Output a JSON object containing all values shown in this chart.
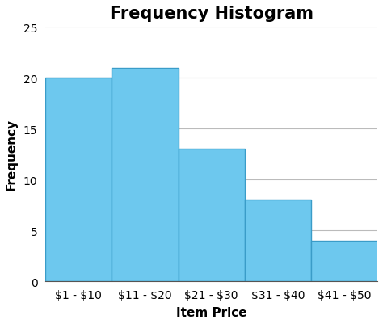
{
  "title": "Frequency Histogram",
  "xlabel": "Item Price",
  "ylabel": "Frequency",
  "categories": [
    "\\$1 - \\$10",
    "\\$11 - \\$20",
    "\\$21 - \\$30",
    "\\$31 - \\$40",
    "\\$41 - \\$50"
  ],
  "values": [
    20,
    21,
    13,
    8,
    4
  ],
  "bar_color": "#6DC8EE",
  "bar_edge_color": "#3A9CC8",
  "ylim": [
    0,
    25
  ],
  "yticks": [
    0,
    5,
    10,
    15,
    20,
    25
  ],
  "title_fontsize": 15,
  "title_fontweight": "bold",
  "label_fontsize": 11,
  "label_fontweight": "bold",
  "tick_fontsize": 10,
  "background_color": "#ffffff",
  "grid_color": "#bbbbbb"
}
